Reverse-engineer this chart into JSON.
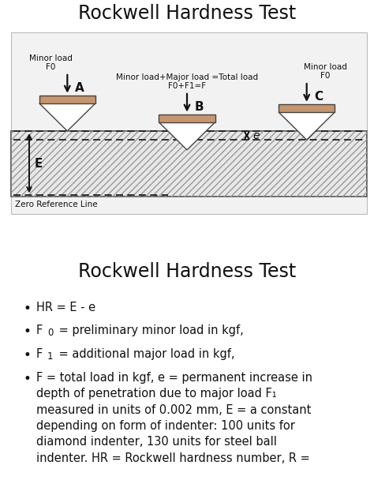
{
  "title1": "Rockwell Hardness Test",
  "title2": "Rockwell Hardness Test",
  "indenter_top_fill": "#c8956c",
  "indenter_cone_fill": "#ffffff",
  "material_fill": "#e8e8e8",
  "dashed_line_color": "#222222",
  "arrow_color": "#111111",
  "minor_load_text_left": "Minor load\nF0",
  "minor_load_text_right": "Minor load\nF0",
  "major_load_text": "Minor load+Major load =Total load\nF0+F1=F",
  "zero_ref_text": "Zero Reference Line",
  "bg_color": "#ffffff",
  "text_color": "#111111",
  "font_size_title": 17,
  "font_size_body": 10.5,
  "font_size_small": 7.5,
  "diagram_bg": "#eeeeee"
}
